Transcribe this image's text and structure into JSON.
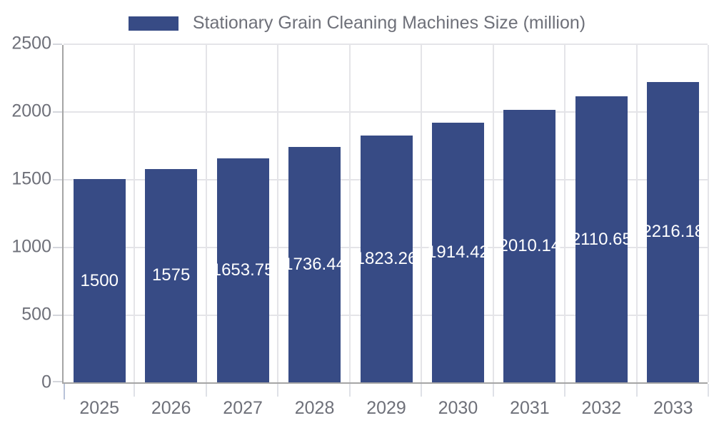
{
  "legend": {
    "label": "Stationary Grain Cleaning Machines Size (million)"
  },
  "chart_data": {
    "type": "bar",
    "title": "Stationary Grain Cleaning Machines Size (million)",
    "categories": [
      "2025",
      "2026",
      "2027",
      "2028",
      "2029",
      "2030",
      "2031",
      "2032",
      "2033"
    ],
    "values": [
      1500,
      1575,
      1653.75,
      1736.44,
      1823.26,
      1914.42,
      2010.14,
      2110.65,
      2216.18
    ],
    "value_labels": [
      "1500",
      "1575",
      "1653.75",
      "1736.44",
      "1823.26",
      "1914.42",
      "2010.14",
      "2110.65",
      "2216.18"
    ],
    "xlabel": "",
    "ylabel": "",
    "ylim": [
      0,
      2500
    ],
    "yticks": [
      0,
      500,
      1000,
      1500,
      2000,
      2500
    ],
    "grid": true,
    "legend_position": "top-center",
    "bar_color": "#374B85",
    "bar_label_color": "#FFFFFF",
    "axis_text_color": "#6E7079",
    "axis_line_color": "#A5A5A5",
    "grid_line_color": "#E4E4E8"
  }
}
